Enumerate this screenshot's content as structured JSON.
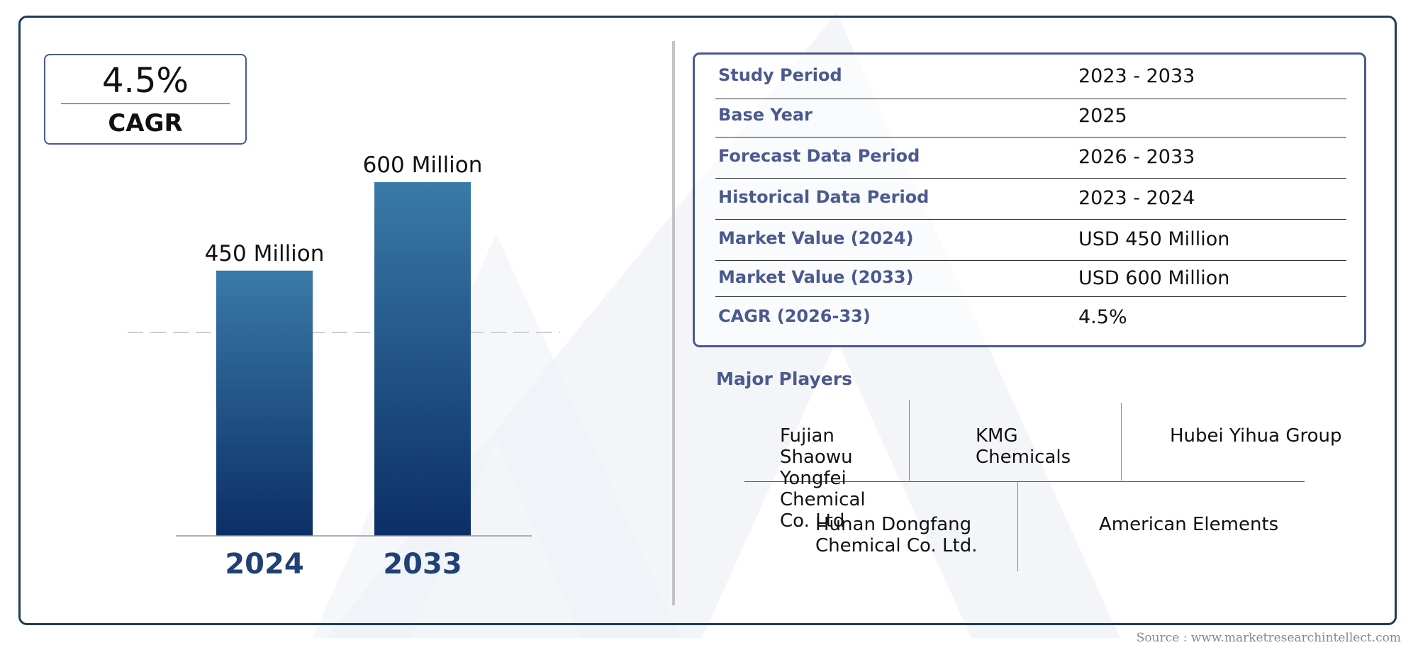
{
  "cagr_box": {
    "value": "4.5%",
    "label": "CAGR"
  },
  "chart_data": {
    "type": "bar",
    "categories": [
      "2024",
      "2033"
    ],
    "values": [
      450,
      600
    ],
    "value_labels": [
      "450 Million",
      "600 Million"
    ],
    "title": "",
    "xlabel": "",
    "ylabel": "",
    "ylim": [
      0,
      600
    ],
    "grid": false,
    "colors": {
      "bar_top": "#3a7aa8",
      "bar_bottom": "#0b2f66",
      "category_text": "#1f4176"
    }
  },
  "info_table": {
    "rows": [
      {
        "key": "Study Period",
        "value": "2023 - 2033"
      },
      {
        "key": "Base Year",
        "value": "2025"
      },
      {
        "key": "Forecast Data Period",
        "value": "2026 - 2033"
      },
      {
        "key": "Historical Data Period",
        "value": "2023 - 2024"
      },
      {
        "key": "Market Value (2024)",
        "value": "USD 450 Million"
      },
      {
        "key": "Market Value (2033)",
        "value": "USD 600 Million"
      },
      {
        "key": "CAGR (2026-33)",
        "value": "4.5%"
      }
    ]
  },
  "players": {
    "title": "Major Players",
    "row1": [
      {
        "name": "Fujian\nShaowu\nYongfei\nChemical\nCo. Ltd"
      },
      {
        "name": "KMG\nChemicals"
      },
      {
        "name": "Hubei Yihua Group"
      }
    ],
    "row2": [
      {
        "name": "Hunan Dongfang\nChemical Co. Ltd."
      },
      {
        "name": "American Elements"
      }
    ]
  },
  "source": "Source : www.marketresearchintellect.com",
  "colors": {
    "accent": "#4a5a8e",
    "frame": "#1c3d57"
  }
}
